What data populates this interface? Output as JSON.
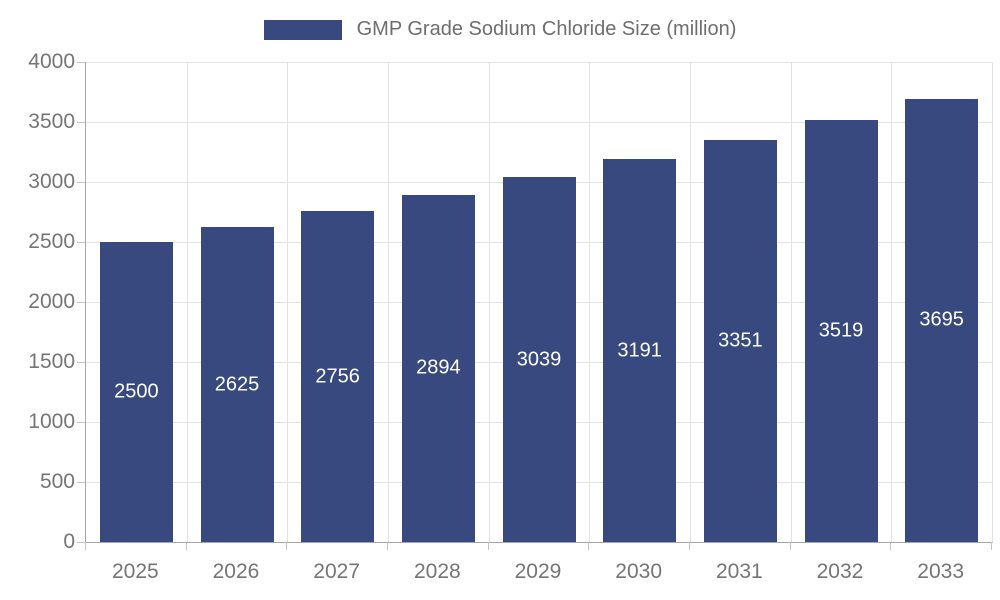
{
  "chart_data": {
    "type": "bar",
    "title": "GMP Grade Sodium Chloride Size (million)",
    "categories": [
      "2025",
      "2026",
      "2027",
      "2028",
      "2029",
      "2030",
      "2031",
      "2032",
      "2033"
    ],
    "values": [
      2500,
      2625,
      2756,
      2894,
      3039,
      3191,
      3351,
      3519,
      3695
    ],
    "xlabel": "",
    "ylabel": "",
    "ylim": [
      0,
      4000
    ],
    "ytick_step": 500,
    "grid": true,
    "legend_position": "top-center",
    "bar_color": "#37497E",
    "bar_label_color": "#ffffff",
    "axis_text_color": "#757575",
    "grid_color": "#e3e3e3",
    "axis_line_color": "#a6a6a6"
  }
}
